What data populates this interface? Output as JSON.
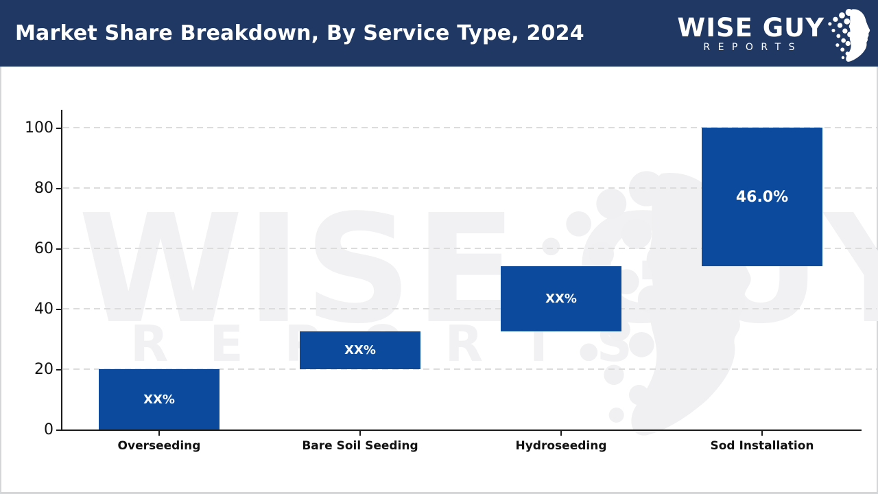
{
  "header": {
    "title": "Market Share Breakdown, By Service Type, 2024",
    "brand_line1": "WISE GUY",
    "brand_line2": "REPORTS"
  },
  "watermark": {
    "line1": "WISE GUY",
    "line2": "REPORTS"
  },
  "colors": {
    "header_bg": "#203864",
    "bar": "#0c4a9e",
    "grid": "#dcdcdc",
    "axis": "#1a1a1a",
    "watermark": "#f1f1f3",
    "title_text": "#ffffff",
    "bar_label_text": "#ffffff"
  },
  "chart_data": {
    "type": "bar",
    "variant": "waterfall-floating-bars",
    "title": "Market Share Breakdown, By Service Type, 2024",
    "xlabel": "",
    "ylabel": "",
    "ylim": [
      0,
      105
    ],
    "yticks": [
      0,
      20,
      40,
      60,
      80,
      100
    ],
    "grid": "horizontal-dashed",
    "legend": "none",
    "categories": [
      "Overseeding",
      "Bare Soil Seeding",
      "Hydroseeding",
      "Sod Installation"
    ],
    "bars": [
      {
        "category": "Overseeding",
        "start": 0,
        "end": 20,
        "value": 20,
        "label": "XX%"
      },
      {
        "category": "Bare Soil Seeding",
        "start": 20,
        "end": 32.5,
        "value": 12.5,
        "label": "XX%"
      },
      {
        "category": "Hydroseeding",
        "start": 32.5,
        "end": 54,
        "value": 21.5,
        "label": "XX%"
      },
      {
        "category": "Sod Installation",
        "start": 54,
        "end": 100,
        "value": 46,
        "label": "46.0%"
      }
    ]
  }
}
